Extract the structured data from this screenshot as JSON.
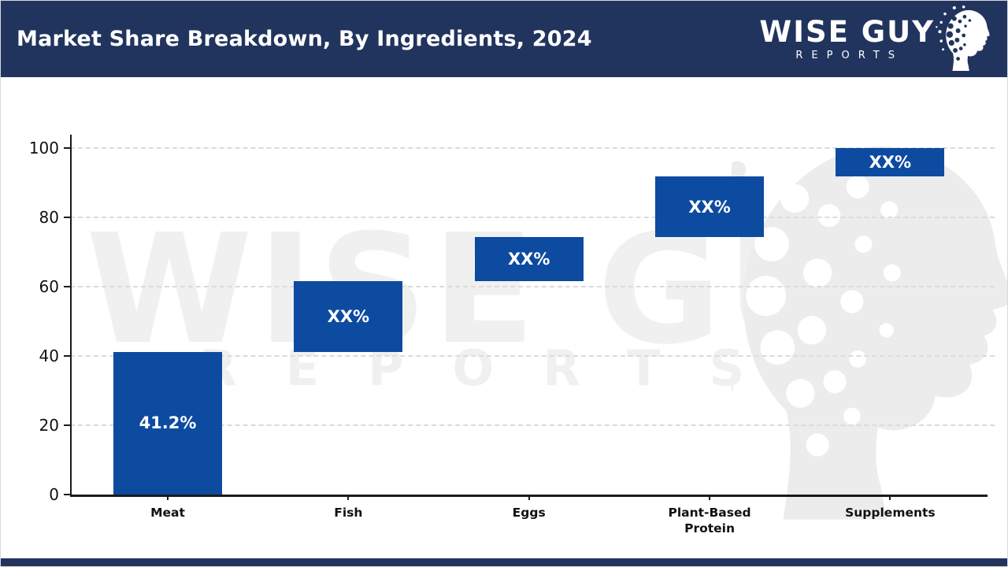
{
  "header": {
    "title": "Market Share Breakdown, By Ingredients, 2024",
    "bg_color": "#21345E",
    "logo": {
      "wordmark": "WISE GUY",
      "sub": "REPORTS"
    }
  },
  "watermark": {
    "wordmark": "WISE GUY",
    "sub": "REPORTS"
  },
  "footer": {
    "bg_color": "#21345E"
  },
  "chart_data": {
    "type": "bar",
    "subtype": "waterfall",
    "title": "Market Share Breakdown, By Ingredients, 2024",
    "categories": [
      "Meat",
      "Fish",
      "Eggs",
      "Plant-Based Protein",
      "Supplements"
    ],
    "segments": [
      {
        "category": "Meat",
        "start": 0,
        "end": 41.2,
        "label": "41.2%"
      },
      {
        "category": "Fish",
        "start": 41.2,
        "end": 61.6,
        "label": "XX%"
      },
      {
        "category": "Eggs",
        "start": 61.6,
        "end": 74.3,
        "label": "XX%"
      },
      {
        "category": "Plant-Based Protein",
        "start": 74.3,
        "end": 91.8,
        "label": "XX%"
      },
      {
        "category": "Supplements",
        "start": 91.8,
        "end": 100,
        "label": "XX%"
      }
    ],
    "ylim": [
      0,
      100
    ],
    "yticks": [
      0,
      20,
      40,
      60,
      80,
      100
    ],
    "xlabel": "",
    "ylabel": "",
    "bar_color": "#0D4BA0",
    "grid": "horizontal-dashed",
    "legend": false
  }
}
